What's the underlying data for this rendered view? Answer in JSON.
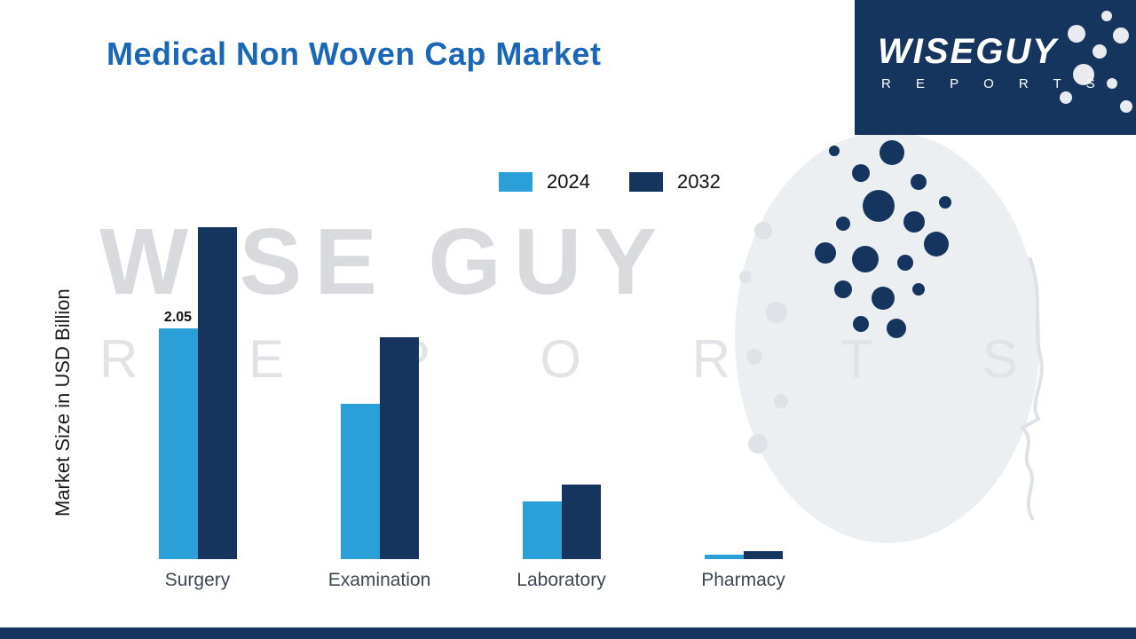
{
  "title": "Medical Non Woven Cap Market",
  "logo": {
    "name": "WISEGUY",
    "subtitle": "R E P O R T S"
  },
  "watermark": {
    "line1": "WISE GUY",
    "line2": "R E P O R T S"
  },
  "chart_data": {
    "type": "bar",
    "categories": [
      "Surgery",
      "Examination",
      "Laboratory",
      "Pharmacy"
    ],
    "series": [
      {
        "name": "2024",
        "color": "#2b9fd8",
        "values": [
          2.05,
          1.38,
          0.51,
          0.04
        ]
      },
      {
        "name": "2032",
        "color": "#16355e",
        "values": [
          2.95,
          1.97,
          0.66,
          0.07
        ]
      }
    ],
    "bar_labels": [
      [
        "2.05",
        "",
        "",
        ""
      ],
      [
        "",
        "",
        "",
        ""
      ]
    ],
    "title": "Medical Non Woven Cap Market",
    "xlabel": "",
    "ylabel": "Market Size in USD Billion",
    "ylim": [
      0,
      3
    ],
    "grid": false,
    "legend_position": "top-center"
  },
  "colors": {
    "title_text": "#1a67b8",
    "series_2024": "#2b9fd8",
    "series_2032": "#16355e",
    "logo_background": "#16355e",
    "footer_bar": "#16355e",
    "watermark_text": "#d8dadd"
  }
}
